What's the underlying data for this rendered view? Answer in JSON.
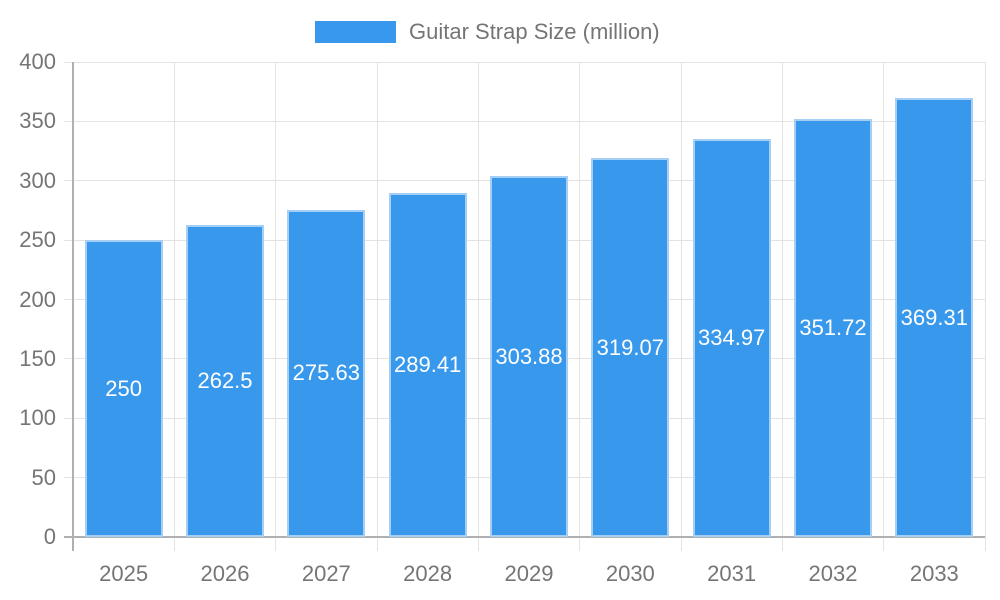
{
  "legend": {
    "label": "Guitar Strap Size (million)",
    "swatch_color": "#3899EC"
  },
  "chart_data": {
    "type": "bar",
    "title": "",
    "xlabel": "",
    "ylabel": "",
    "categories": [
      "2025",
      "2026",
      "2027",
      "2028",
      "2029",
      "2030",
      "2031",
      "2032",
      "2033"
    ],
    "series": [
      {
        "name": "Guitar Strap Size (million)",
        "values": [
          250,
          262.5,
          275.63,
          289.41,
          303.88,
          319.07,
          334.97,
          351.72,
          369.31
        ],
        "value_labels": [
          "250",
          "262.5",
          "275.63",
          "289.41",
          "303.88",
          "319.07",
          "334.97",
          "351.72",
          "369.31"
        ]
      }
    ],
    "ylim": [
      0,
      400
    ],
    "ytick_step": 50,
    "yticks": [
      "0",
      "50",
      "100",
      "150",
      "200",
      "250",
      "300",
      "350",
      "400"
    ],
    "grid": true,
    "legend_position": "top",
    "colors": {
      "bar_fill": "#3899EC",
      "bar_border": "#A5CFF5",
      "value_label_text": "#FFFFFF",
      "axis_text": "#757575",
      "grid_line": "#E3E3E3",
      "axis_line": "#B0B0B0",
      "legend_text": "#757575"
    }
  }
}
